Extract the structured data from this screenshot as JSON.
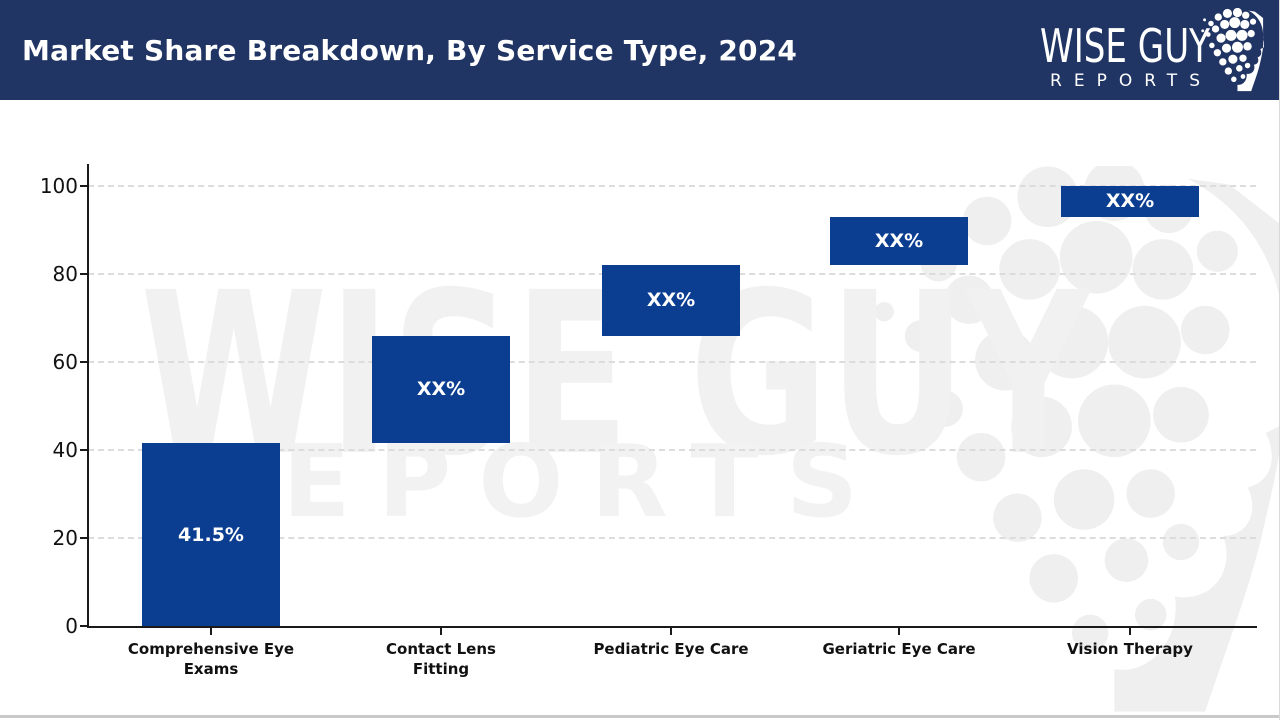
{
  "header": {
    "title": "Market Share Breakdown, By Service Type, 2024",
    "bg_color": "#213564",
    "logo": {
      "name": "WISE GUY",
      "sub": "REPORTS"
    }
  },
  "watermark": {
    "line1": "WISE GUY",
    "line2": "REPORTS"
  },
  "chart_data": {
    "type": "bar",
    "subtype": "waterfall",
    "title": "Market Share Breakdown, By Service Type, 2024",
    "categories": [
      "Comprehensive Eye Exams",
      "Contact Lens Fitting",
      "Pediatric Eye Care",
      "Geriatric Eye Care",
      "Vision Therapy"
    ],
    "category_label_lines": [
      [
        "Comprehensive Eye",
        "Exams"
      ],
      [
        "Contact Lens",
        "Fitting"
      ],
      [
        "Pediatric Eye Care"
      ],
      [
        "Geriatric Eye Care"
      ],
      [
        "Vision Therapy"
      ]
    ],
    "segments": [
      {
        "category": "Comprehensive Eye Exams",
        "label": "41.5%",
        "start": 0,
        "end": 41.5
      },
      {
        "category": "Contact Lens Fitting",
        "label": "XX%",
        "start": 41.5,
        "end": 66
      },
      {
        "category": "Pediatric Eye Care",
        "label": "XX%",
        "start": 66,
        "end": 82
      },
      {
        "category": "Geriatric Eye Care",
        "label": "XX%",
        "start": 82,
        "end": 93
      },
      {
        "category": "Vision Therapy",
        "label": "XX%",
        "start": 93,
        "end": 100
      }
    ],
    "yticks": [
      0,
      20,
      40,
      60,
      80,
      100
    ],
    "ylim": [
      0,
      105
    ],
    "xlabel": "",
    "ylabel": "",
    "bar_color": "#0b3d91",
    "bar_label_color": "#ffffff",
    "grid": {
      "horizontal": true,
      "style": "dashed",
      "color": "#dcdcdc"
    },
    "legend": "none"
  }
}
